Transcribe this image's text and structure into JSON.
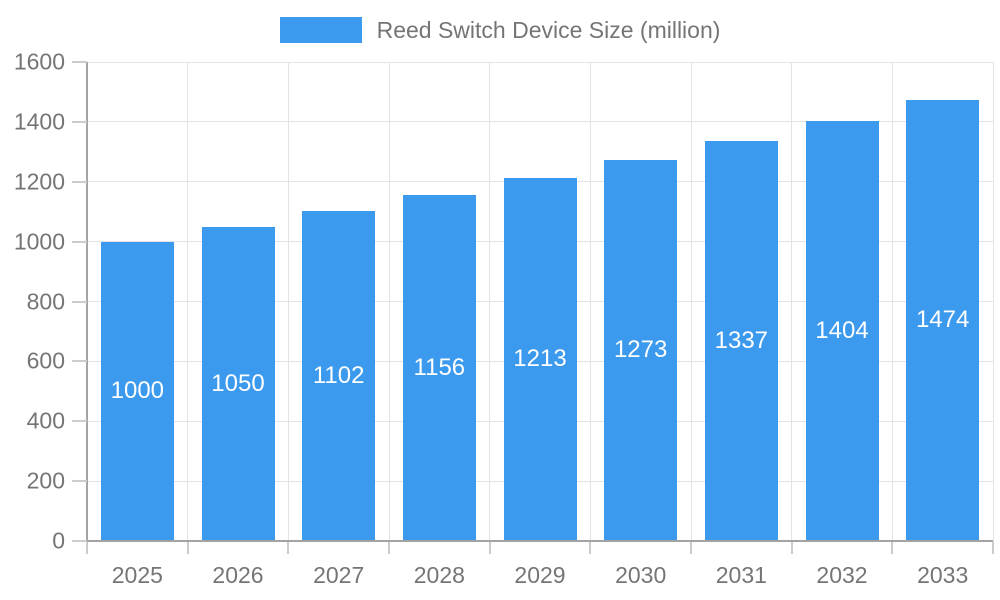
{
  "legend": {
    "label": "Reed Switch Device Size (million)"
  },
  "chart_data": {
    "type": "bar",
    "title": "Reed Switch Device Size (million)",
    "categories": [
      "2025",
      "2026",
      "2027",
      "2028",
      "2029",
      "2030",
      "2031",
      "2032",
      "2033"
    ],
    "values": [
      1000,
      1050,
      1102,
      1156,
      1213,
      1273,
      1337,
      1404,
      1474
    ],
    "xlabel": "",
    "ylabel": "",
    "ylim": [
      0,
      1600
    ],
    "yticks": [
      0,
      200,
      400,
      600,
      800,
      1000,
      1200,
      1400,
      1600
    ],
    "grid": "on",
    "legend_position": "top-center",
    "bar_color": "#3B99EE",
    "bar_label_color": "#FFFFFF",
    "axis_text_color": "#757575",
    "gridline_color": "#E3E3E3",
    "tick_color": "#CCCCCC",
    "axis_line_color": "#A3A3A3",
    "background_color": "#FFFFFF"
  }
}
